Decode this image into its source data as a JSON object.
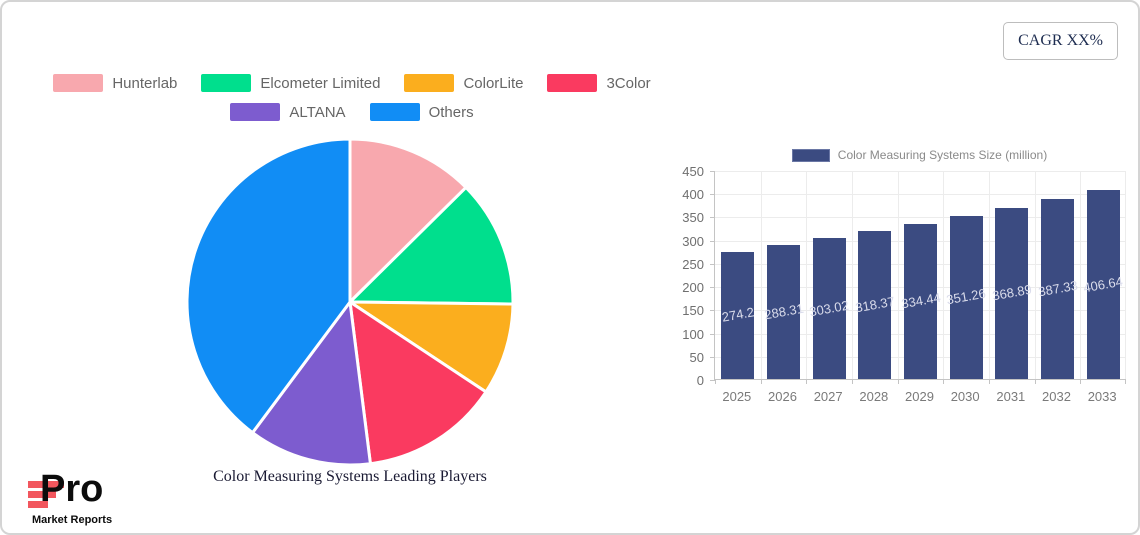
{
  "card": {
    "cagr_label": "CAGR XX%"
  },
  "logo": {
    "name": "Pro",
    "subtitle": "Market Reports",
    "bar_color": "#f2575e"
  },
  "chart_data": [
    {
      "type": "pie",
      "title": "Color Measuring Systems Leading Players",
      "legend_position": "top",
      "start_angle_deg": 0,
      "direction": "clockwise",
      "gap_color": "#ffffff",
      "slices": [
        {
          "label": "Hunterlab",
          "value": 12.6,
          "color": "#f8a8ae"
        },
        {
          "label": "Elcometer Limited",
          "value": 12.6,
          "color": "#00df8d"
        },
        {
          "label": "ColorLite",
          "value": 9.1,
          "color": "#fbae1e"
        },
        {
          "label": "3Color",
          "value": 13.7,
          "color": "#fa3a60"
        },
        {
          "label": "ALTANA",
          "value": 12.2,
          "color": "#7d5ccf"
        },
        {
          "label": "Others",
          "value": 39.8,
          "color": "#118df5"
        }
      ]
    },
    {
      "type": "bar",
      "legend": "Color Measuring Systems Size (million)",
      "categories": [
        "2025",
        "2026",
        "2027",
        "2028",
        "2029",
        "2030",
        "2031",
        "2032",
        "2033"
      ],
      "values": [
        274.2,
        288.31,
        303.02,
        318.37,
        334.44,
        351.26,
        368.89,
        387.33,
        406.64
      ],
      "value_labels": [
        "274.2",
        "288.31",
        "303.02",
        "318.37",
        "334.44",
        "351.26",
        "368.89",
        "387.33",
        "406.64"
      ],
      "ylim": [
        0,
        450
      ],
      "ytick_step": 50,
      "bar_color": "#3b4b81",
      "grid": true,
      "legend_position": "top"
    }
  ]
}
